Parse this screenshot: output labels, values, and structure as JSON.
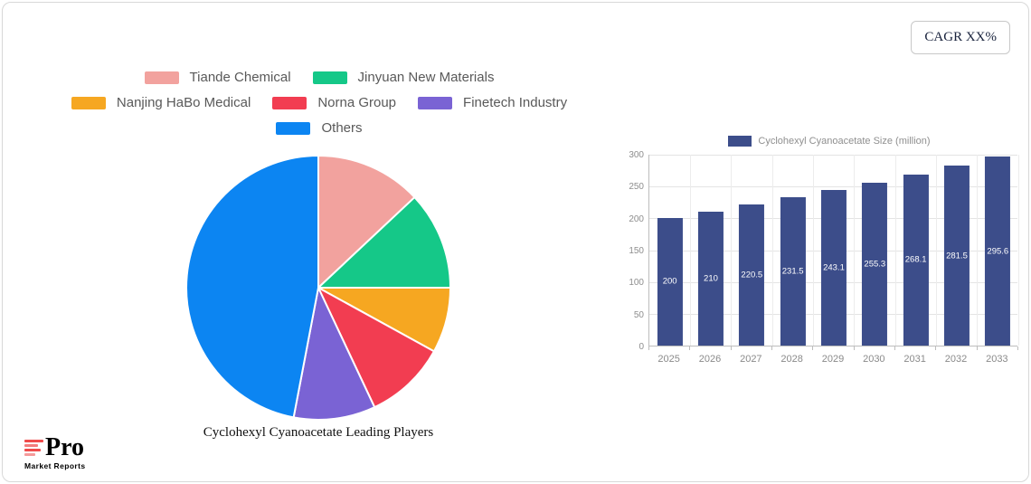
{
  "frame": {
    "cagr_label": "CAGR XX%"
  },
  "logo": {
    "name": "Pro",
    "subtitle": "Market Reports"
  },
  "chart_data": [
    {
      "type": "pie",
      "title": "Cyclohexyl Cyanoacetate Leading Players",
      "legend_position": "top",
      "direction": "clockwise",
      "start_angle_deg": 0,
      "slices": [
        {
          "label": "Tiande Chemical",
          "value": 13,
          "color": "#f2a29e"
        },
        {
          "label": "Jinyuan New Materials",
          "value": 12,
          "color": "#15c888"
        },
        {
          "label": "Nanjing HaBo Medical",
          "value": 8,
          "color": "#f6a721"
        },
        {
          "label": "Norna Group",
          "value": 10,
          "color": "#f23d51"
        },
        {
          "label": "Finetech Industry",
          "value": 10,
          "color": "#7a63d4"
        },
        {
          "label": "Others",
          "value": 47,
          "color": "#0c85f2"
        }
      ],
      "legend_rows": [
        [
          0,
          1
        ],
        [
          2,
          3,
          4
        ],
        [
          5
        ]
      ]
    },
    {
      "type": "bar",
      "series_name": "Cyclohexyl Cyanoacetate Size (million)",
      "categories": [
        "2025",
        "2026",
        "2027",
        "2028",
        "2029",
        "2030",
        "2031",
        "2032",
        "2033"
      ],
      "values": [
        200,
        210,
        220.5,
        231.5,
        243.1,
        255.3,
        268.1,
        281.5,
        295.6
      ],
      "bar_color": "#3c4d8a",
      "ylim": [
        0,
        300
      ],
      "yticks": [
        0,
        50,
        100,
        150,
        200,
        250,
        300
      ],
      "grid": true,
      "legend_position": "top"
    }
  ]
}
